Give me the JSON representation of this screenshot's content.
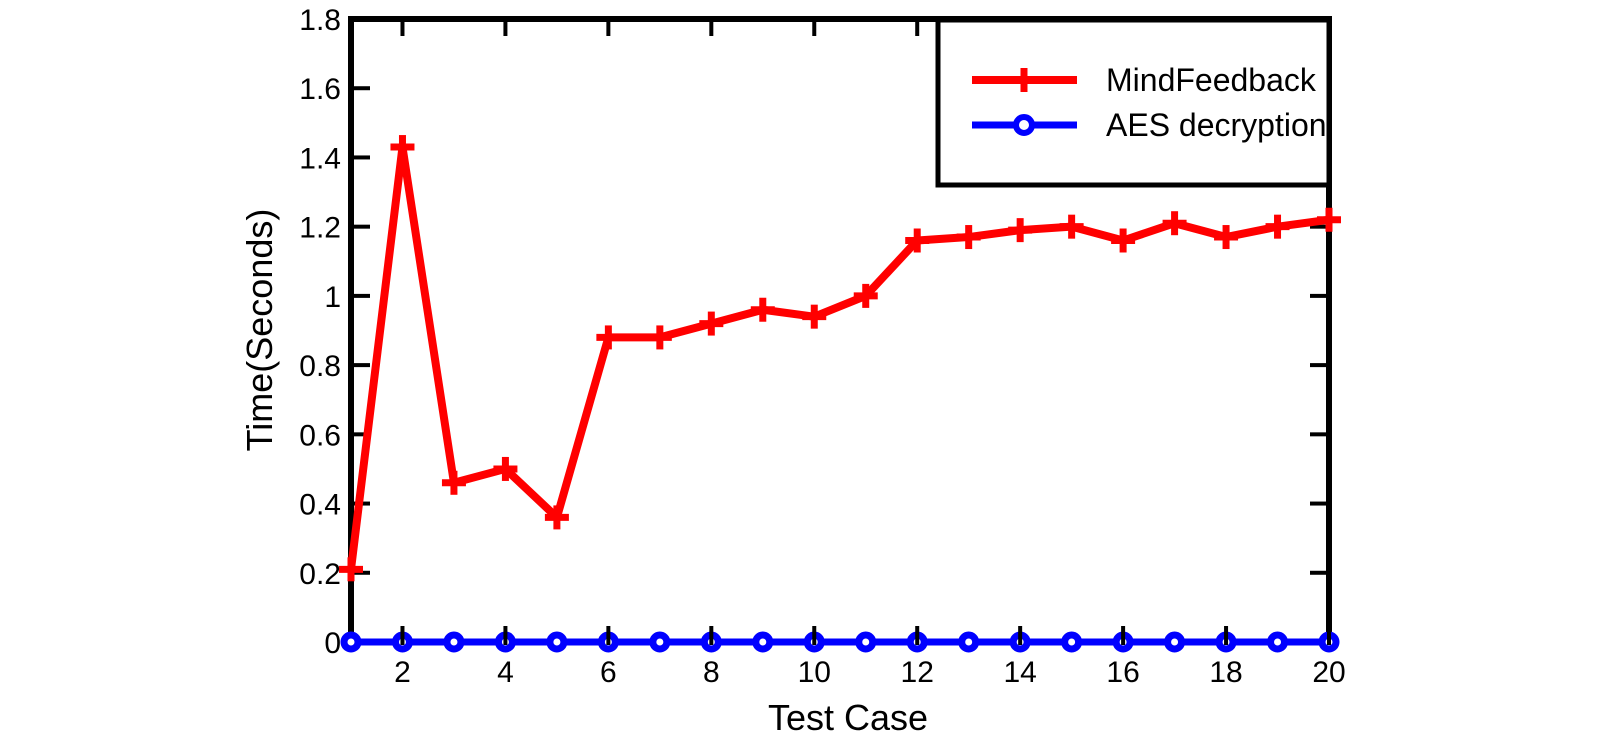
{
  "figure": {
    "background": "#ffffff",
    "frame_color": "#000000"
  },
  "chart_data": {
    "type": "line",
    "title": "",
    "xlabel": "Test Case",
    "ylabel": "Time(Seconds)",
    "xlim": [
      1,
      20
    ],
    "ylim": [
      0,
      1.8
    ],
    "x": [
      1,
      2,
      3,
      4,
      5,
      6,
      7,
      8,
      9,
      10,
      11,
      12,
      13,
      14,
      15,
      16,
      17,
      18,
      19,
      20
    ],
    "xticks": [
      2,
      4,
      6,
      8,
      10,
      12,
      14,
      16,
      18,
      20
    ],
    "xtick_labels": [
      "2",
      "4",
      "6",
      "8",
      "10",
      "12",
      "14",
      "16",
      "18",
      "20"
    ],
    "yticks": [
      0,
      0.2,
      0.4,
      0.6,
      0.8,
      1,
      1.2,
      1.4,
      1.6,
      1.8
    ],
    "ytick_labels": [
      "0",
      "0.2",
      "0.4",
      "0.6",
      "0.8",
      "1",
      "1.2",
      "1.4",
      "1.6",
      "1.8"
    ],
    "grid": false,
    "legend": {
      "position": "top-right",
      "border": true
    },
    "series": [
      {
        "name": "MindFeedback",
        "color": "#ff0000",
        "marker": "plus",
        "values": [
          0.21,
          1.43,
          0.46,
          0.5,
          0.36,
          0.88,
          0.88,
          0.92,
          0.96,
          0.94,
          1.0,
          1.16,
          1.17,
          1.19,
          1.2,
          1.16,
          1.21,
          1.17,
          1.2,
          1.22
        ]
      },
      {
        "name": "AES decryption",
        "color": "#0000ff",
        "marker": "circle",
        "values": [
          0,
          0,
          0,
          0,
          0,
          0,
          0,
          0,
          0,
          0,
          0,
          0,
          0,
          0,
          0,
          0,
          0,
          0,
          0,
          0
        ]
      }
    ]
  }
}
